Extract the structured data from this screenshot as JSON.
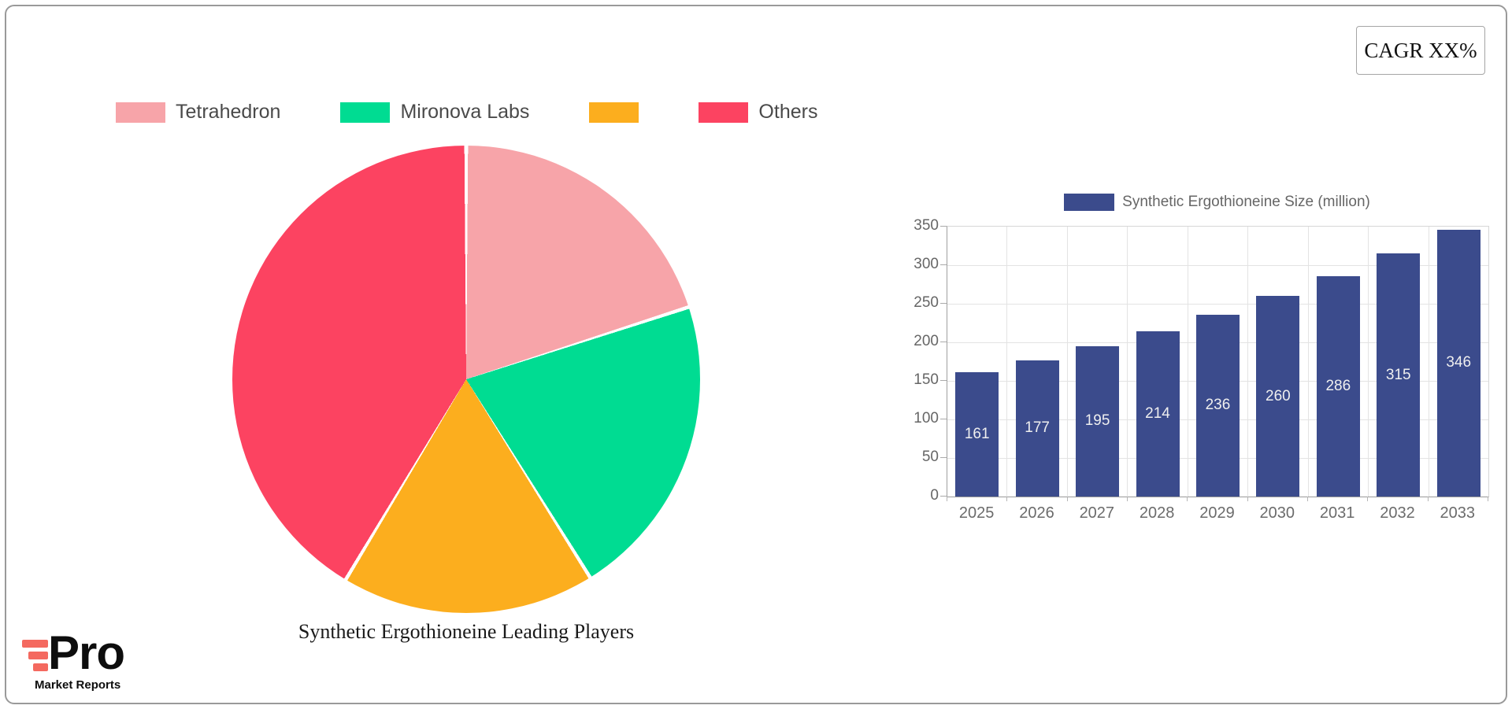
{
  "page": {
    "cagr_label": "CAGR XX%"
  },
  "logo": {
    "name": "Pro",
    "subtitle": "Market Reports",
    "bar_color": "#F4695F"
  },
  "chart_data": [
    {
      "type": "pie",
      "title": "Synthetic Ergothioneine Leading Players",
      "legend_position": "top",
      "segments": [
        {
          "label": "Tetrahedron",
          "color": "#F7A4A9",
          "percent": 20.0,
          "start_deg": 0,
          "end_deg": 72
        },
        {
          "label": "Mironova Labs",
          "color": "#00DC92",
          "percent": 21.1,
          "start_deg": 72,
          "end_deg": 148
        },
        {
          "label": "",
          "color": "#FCAE1E",
          "percent": 17.5,
          "start_deg": 148,
          "end_deg": 211
        },
        {
          "label": "Others",
          "color": "#FC4361",
          "percent": 41.4,
          "start_deg": 211,
          "end_deg": 360
        }
      ],
      "slice_gap_color": "#ffffff"
    },
    {
      "type": "bar",
      "legend": "Synthetic Ergothioneine Size (million)",
      "bar_color": "#3B4B8C",
      "categories": [
        "2025",
        "2026",
        "2027",
        "2028",
        "2029",
        "2030",
        "2031",
        "2032",
        "2033"
      ],
      "values": [
        161,
        177,
        195,
        214,
        236,
        260,
        286,
        315,
        346
      ],
      "ylim": [
        0,
        350
      ],
      "yticks": [
        0,
        50,
        100,
        150,
        200,
        250,
        300,
        350
      ],
      "grid": true,
      "legend_position": "top",
      "value_labels": "inside-center"
    }
  ]
}
